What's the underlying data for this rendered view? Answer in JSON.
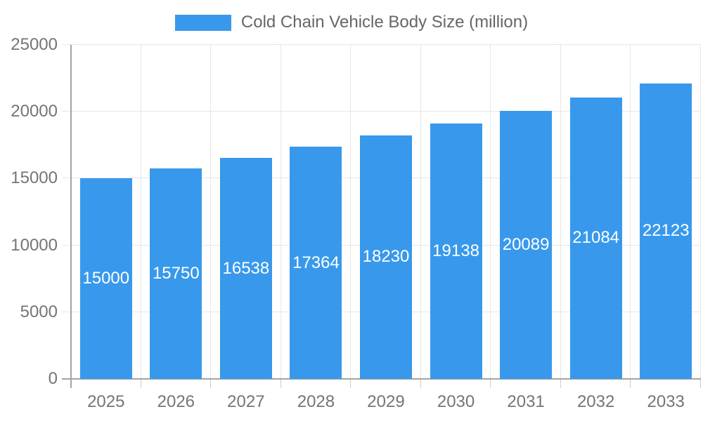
{
  "chart_data": {
    "type": "bar",
    "title": "",
    "legend": "Cold Chain Vehicle Body Size (million)",
    "legend_position": "top",
    "categories": [
      "2025",
      "2026",
      "2027",
      "2028",
      "2029",
      "2030",
      "2031",
      "2032",
      "2033"
    ],
    "values": [
      15000,
      15750,
      16538,
      17364,
      18230,
      19138,
      20089,
      21084,
      22123
    ],
    "bar_labels": [
      "15000",
      "15750",
      "16538",
      "17364",
      "18230",
      "19138",
      "20089",
      "21084",
      "22123"
    ],
    "xlabel": "",
    "ylabel": "",
    "ylim": [
      0,
      25000
    ],
    "yticks": [
      0,
      5000,
      10000,
      15000,
      20000,
      25000
    ],
    "ytick_labels": [
      "0",
      "5000",
      "10000",
      "15000",
      "20000",
      "25000"
    ],
    "grid": true,
    "colors": {
      "bar": "#3899ec",
      "bar_label_text": "#ffffff",
      "gridline": "#e6e6e6",
      "axis_line": "#a3a3a3",
      "minor_tick": "#cccccc",
      "axis_text": "#757575",
      "legend_text": "#666666",
      "background": "#ffffff"
    }
  }
}
